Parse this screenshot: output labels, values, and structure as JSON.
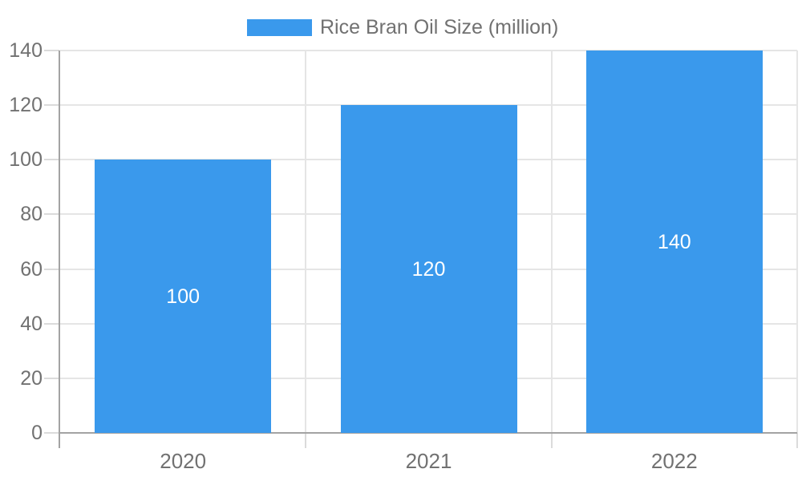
{
  "chart_data": {
    "type": "bar",
    "title": "",
    "legend": {
      "label": "Rice Bran Oil Size (million)",
      "position": "top"
    },
    "categories": [
      "2020",
      "2021",
      "2022"
    ],
    "series": [
      {
        "name": "Rice Bran Oil Size (million)",
        "values": [
          100,
          120,
          140
        ]
      }
    ],
    "bar_labels": [
      "100",
      "120",
      "140"
    ],
    "yticks": [
      "0",
      "20",
      "40",
      "60",
      "80",
      "100",
      "120",
      "140"
    ],
    "ylim": [
      0,
      140
    ],
    "xlabel": "",
    "ylabel": "",
    "grid": true,
    "colors": {
      "bar": "#3A99EC",
      "bar_label": "#FFFFFF",
      "grid": "#E5E5E5",
      "tick": "#DBDBDB",
      "axis": "#A3A3A3",
      "text": "#717171",
      "background": "#FFFFFF"
    }
  }
}
